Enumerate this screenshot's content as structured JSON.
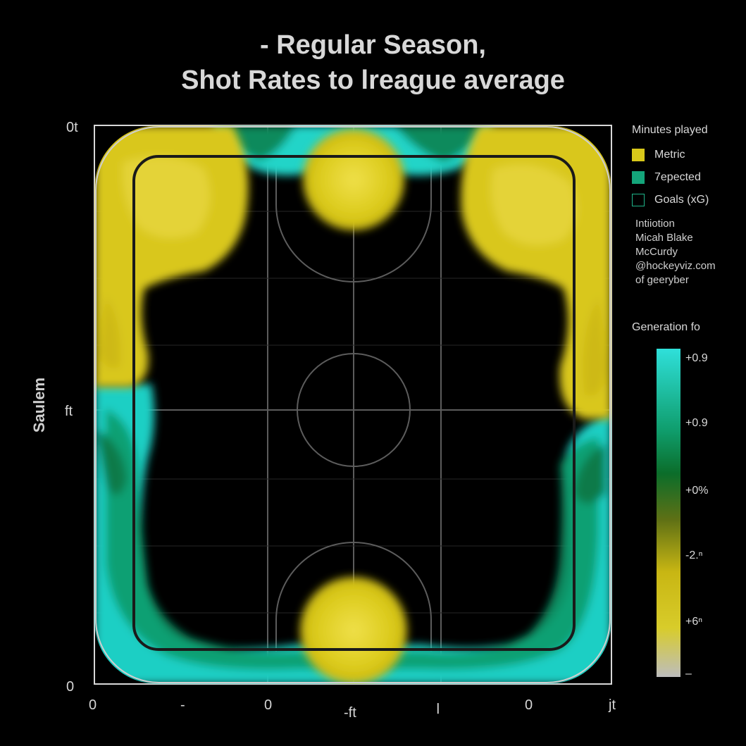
{
  "title_line1": "- Regular Season,",
  "title_line2": "Shot Rates to lreague average",
  "y_axis": {
    "label": "Saulem",
    "ticks": [
      "0t",
      "ft",
      "0"
    ]
  },
  "x_axis": {
    "label": "-ft",
    "ticks": [
      "0",
      "-",
      "0",
      "ꞁ",
      "0",
      "jt"
    ]
  },
  "legend": {
    "title": "Minutes played",
    "items": [
      {
        "label": "Metric",
        "color": "#d8c81a"
      },
      {
        "label": "7epected",
        "color": "#14a57a"
      },
      {
        "label": "Goals (xG)",
        "color": "#000000"
      }
    ]
  },
  "attribution": [
    "Intiiotion",
    "Micah Blake",
    "McCurdy",
    "@hockeyviz.com",
    "of geeryber"
  ],
  "colorbar": {
    "title": "Generation fo",
    "ticks": [
      "+0.9",
      "+0.9",
      "+0%",
      "-2.ⁿ",
      "+6ⁿ",
      "–"
    ]
  },
  "colors": {
    "high": "#2fe0da",
    "mid": "#0f8a50",
    "low": "#d8cc1a",
    "background": "#000000",
    "rink_lines": "#6a6a6a"
  },
  "chart_data": {
    "type": "heatmap",
    "title": "- Regular Season, Shot Rates to lreague average",
    "xlabel": "-ft",
    "ylabel": "Saulem",
    "regions": [
      {
        "zone": "top-left corner",
        "category": "Metric"
      },
      {
        "zone": "top-right corner",
        "category": "Metric"
      },
      {
        "zone": "top crease",
        "category": "Metric"
      },
      {
        "zone": "bottom crease",
        "category": "Metric"
      },
      {
        "zone": "top boards",
        "category": "7epected"
      },
      {
        "zone": "lower-left boards",
        "category": "7epected"
      },
      {
        "zone": "lower-right boards",
        "category": "7epected"
      },
      {
        "zone": "bottom boards",
        "category": "7epected"
      }
    ]
  }
}
